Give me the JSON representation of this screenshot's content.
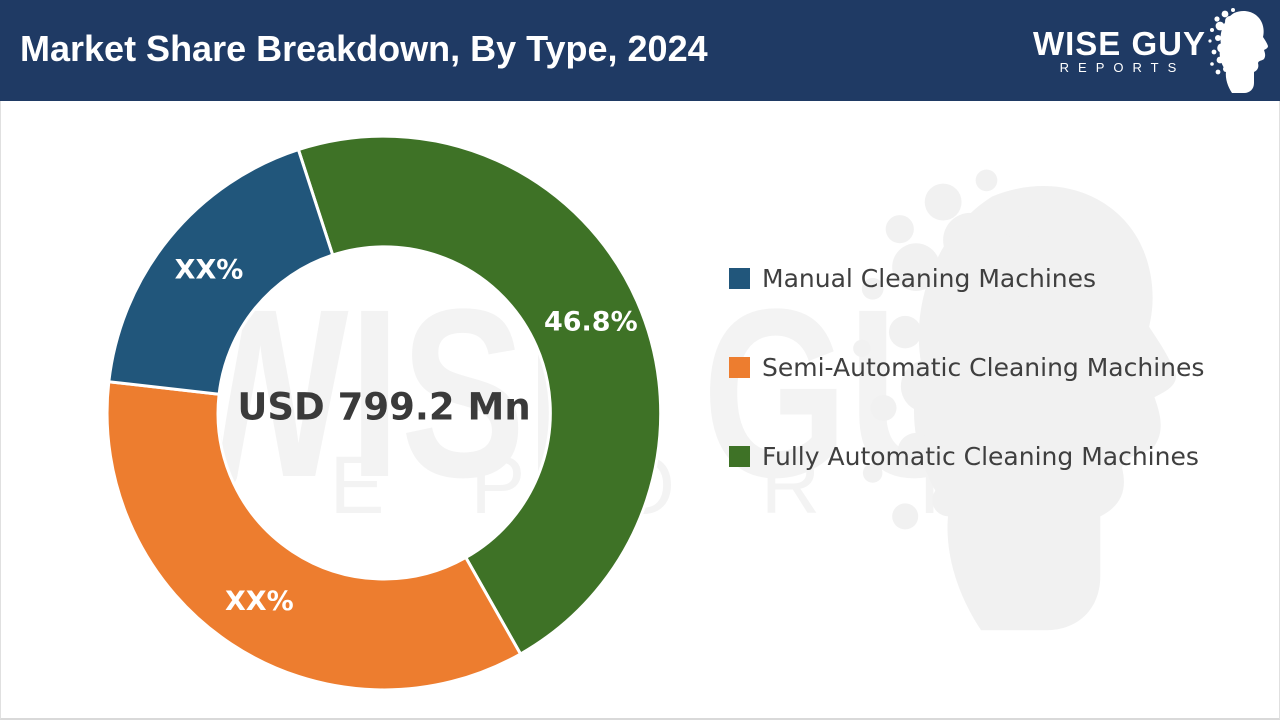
{
  "header": {
    "title": "Market Share Breakdown, By Type, 2024",
    "logo": {
      "wordmark": "WISE GUY",
      "sub": "REPORTS"
    }
  },
  "watermark": {
    "wordmark": "WISE GUY",
    "sub": "REPORTS"
  },
  "legend": {
    "items": [
      {
        "label": "Manual Cleaning Machines",
        "color": "#21567B"
      },
      {
        "label": "Semi-Automatic Cleaning Machines",
        "color": "#ED7D2F"
      },
      {
        "label": "Fully Automatic Cleaning Machines",
        "color": "#3E7226"
      }
    ]
  },
  "chart_data": {
    "type": "pie",
    "subtype": "donut",
    "title": "Market Share Breakdown, By Type, 2024",
    "center_label": "USD 799.2 Mn",
    "start_angle_deg": 342,
    "direction": "clockwise",
    "outer_radius": 277,
    "inner_radius": 166,
    "label_radius": 226,
    "slices": [
      {
        "name": "Fully Automatic Cleaning Machines",
        "display_label": "46.8%",
        "value_pct": 46.8,
        "estimated": false,
        "color": "#3E7226"
      },
      {
        "name": "Semi-Automatic Cleaning Machines",
        "display_label": "XX%",
        "value_pct": 35.0,
        "estimated": true,
        "color": "#ED7D2F"
      },
      {
        "name": "Manual Cleaning Machines",
        "display_label": "XX%",
        "value_pct": 18.2,
        "estimated": true,
        "color": "#21567B"
      }
    ]
  },
  "colors": {
    "header_bg": "#1F3A64",
    "center_text": "#3A3A3A",
    "legend_text": "#3F3F3F",
    "watermark": "#F3F3F3",
    "slice_gap": "#FFFFFF",
    "bottom_border": "#D9D9D9"
  }
}
